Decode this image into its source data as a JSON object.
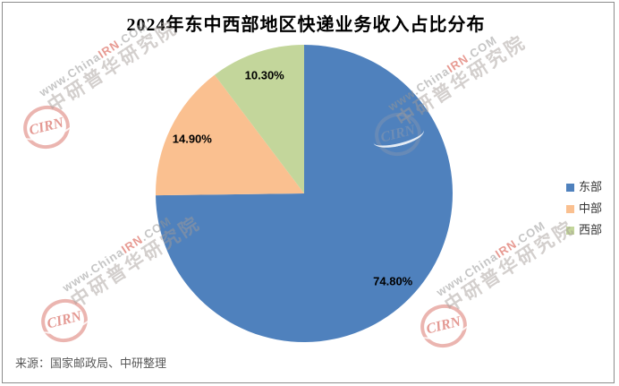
{
  "title": "2024年东中西部地区快递业务收入占比分布",
  "source": "来源：国家邮政局、中研整理",
  "chart_data": {
    "type": "pie",
    "title": "2024年东中西部地区快递业务收入占比分布",
    "categories": [
      "东部",
      "中部",
      "西部"
    ],
    "values": [
      74.8,
      14.9,
      10.3
    ],
    "labels": [
      "74.80%",
      "14.90%",
      "10.30%"
    ],
    "colors": [
      "#4F81BD",
      "#FAC090",
      "#C3D69B"
    ],
    "unit": "%",
    "start_angle_deg": 0,
    "direction": "clockwise",
    "legend_position": "right",
    "data_labels": "inside",
    "source": "来源：国家邮政局、中研整理"
  },
  "legend": {
    "items": [
      {
        "label": "东部",
        "color": "#4F81BD"
      },
      {
        "label": "中部",
        "color": "#FAC090"
      },
      {
        "label": "西部",
        "color": "#C3D69B"
      }
    ]
  },
  "watermark": {
    "logo_text": "CIRN",
    "url_prefix": "www.China",
    "url_accent": "IRN",
    "url_suffix": ".COM",
    "cn_text": "中研普华研究院",
    "logo_red": "#cd463a",
    "logo_gray_blue": "#8094b1"
  }
}
